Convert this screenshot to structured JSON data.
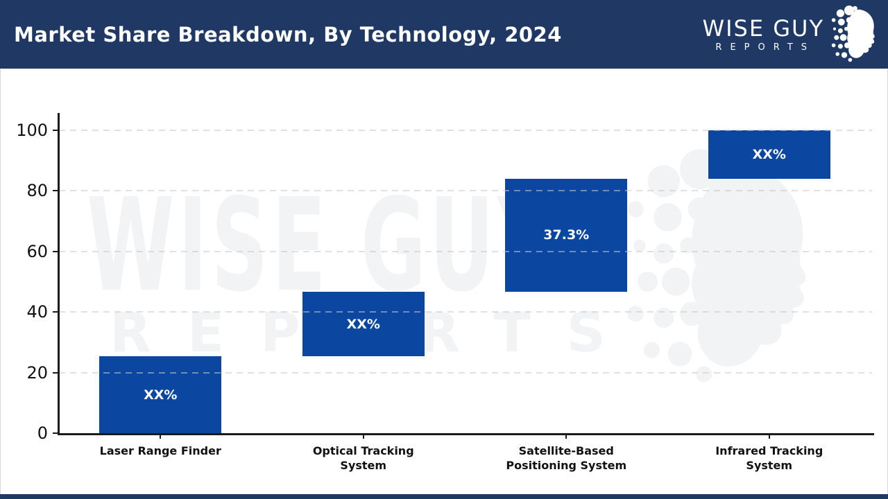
{
  "header": {
    "title": "Market Share Breakdown, By Technology, 2024",
    "logo": {
      "line1": "WISE GUY",
      "line2": "REPORTS"
    }
  },
  "watermark": {
    "line1": "WISE GUY",
    "line2": "REPORTS"
  },
  "footer": {},
  "colors": {
    "header_bg": "#1f3864",
    "bar": "#0b46a0",
    "axis": "#1a1a1a",
    "grid": "#c8c8c8",
    "tick_text": "#111111",
    "bar_label_text": "#ffffff",
    "watermark": "#f2f3f5"
  },
  "chart_data": {
    "type": "bar",
    "variant": "floating-segment-waterfall",
    "title": "Market Share Breakdown, By Technology, 2024",
    "categories": [
      "Laser Range Finder",
      "Optical Tracking\nSystem",
      "Satellite-Based\nPositioning System",
      "Infrared Tracking\nSystem"
    ],
    "bars": [
      {
        "category": "Laser Range Finder",
        "start": 0,
        "end": 25.3,
        "value": 25.3,
        "label": "XX%"
      },
      {
        "category": "Optical Tracking System",
        "start": 25.3,
        "end": 46.7,
        "value": 21.4,
        "label": "XX%"
      },
      {
        "category": "Satellite-Based Positioning System",
        "start": 46.7,
        "end": 84.0,
        "value": 37.3,
        "label": "37.3%"
      },
      {
        "category": "Infrared Tracking System",
        "start": 84.0,
        "end": 100.0,
        "value": 16.0,
        "label": "XX%"
      }
    ],
    "xlabel": "",
    "ylabel": "",
    "yticks": [
      0,
      20,
      40,
      60,
      80,
      100
    ],
    "ylim": [
      0,
      105
    ],
    "grid": "horizontal-dashed",
    "legend": "none"
  }
}
